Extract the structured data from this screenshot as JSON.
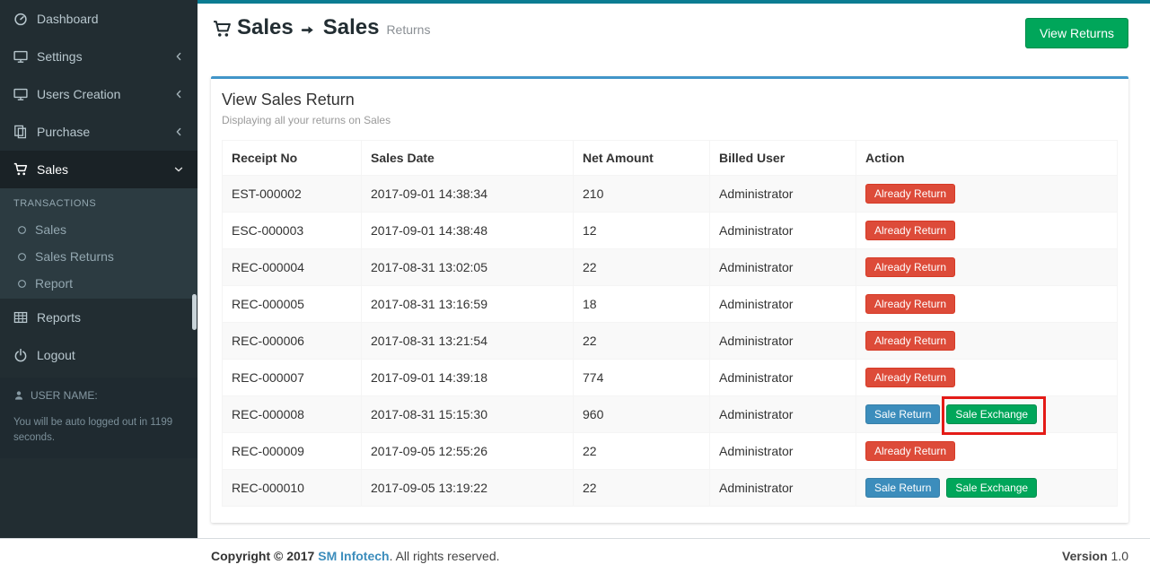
{
  "colors": {
    "accent_blue": "#3c8dbc",
    "success_green": "#00a65a",
    "danger_red": "#dd4b39",
    "sidebar_bg": "#222d32",
    "submenu_bg": "#2c3b41",
    "top_bar": "#0b7c92",
    "highlight_annotation": "#e41b17"
  },
  "sidebar": {
    "items": [
      {
        "label": "Dashboard",
        "icon": "dashboard-icon",
        "chevron": null,
        "active": false
      },
      {
        "label": "Settings",
        "icon": "desktop-icon",
        "chevron": "left",
        "active": false
      },
      {
        "label": "Users Creation",
        "icon": "desktop-icon",
        "chevron": "left",
        "active": false
      },
      {
        "label": "Purchase",
        "icon": "copy-icon",
        "chevron": "left",
        "active": false
      },
      {
        "label": "Sales",
        "icon": "cart-icon",
        "chevron": "down",
        "active": true
      }
    ],
    "submenu": {
      "header": "TRANSACTIONS",
      "items": [
        {
          "label": "Sales",
          "icon": "circle-icon"
        },
        {
          "label": "Sales Returns",
          "icon": "circle-icon"
        },
        {
          "label": "Report",
          "icon": "circle-icon"
        }
      ]
    },
    "lower_items": [
      {
        "label": "Reports",
        "icon": "table-icon",
        "chevron": null,
        "active": false
      },
      {
        "label": "Logout",
        "icon": "power-icon",
        "chevron": null,
        "active": false
      }
    ],
    "user_section": {
      "icon": "user-icon",
      "label": "USER NAME:",
      "auto_logout_text": "You will be auto logged out in 1199 seconds."
    }
  },
  "header": {
    "icon": "cart-icon",
    "title_main": "Sales",
    "arrow_icon": "arrow-right-icon",
    "title_section": "Sales",
    "title_sub": "Returns",
    "action_button": "View Returns"
  },
  "panel": {
    "title": "View Sales Return",
    "subtitle": "Displaying all your returns on Sales"
  },
  "table": {
    "headers": [
      "Receipt No",
      "Sales Date",
      "Net Amount",
      "Billed User",
      "Action"
    ],
    "rows": [
      {
        "receipt_no": "EST-000002",
        "sales_date": "2017-09-01 14:38:34",
        "net_amount": "210",
        "billed_user": "Administrator",
        "actions": [
          {
            "label": "Already Return",
            "style": "danger",
            "highlight": false
          }
        ]
      },
      {
        "receipt_no": "ESC-000003",
        "sales_date": "2017-09-01 14:38:48",
        "net_amount": "12",
        "billed_user": "Administrator",
        "actions": [
          {
            "label": "Already Return",
            "style": "danger",
            "highlight": false
          }
        ]
      },
      {
        "receipt_no": "REC-000004",
        "sales_date": "2017-08-31 13:02:05",
        "net_amount": "22",
        "billed_user": "Administrator",
        "actions": [
          {
            "label": "Already Return",
            "style": "danger",
            "highlight": false
          }
        ]
      },
      {
        "receipt_no": "REC-000005",
        "sales_date": "2017-08-31 13:16:59",
        "net_amount": "18",
        "billed_user": "Administrator",
        "actions": [
          {
            "label": "Already Return",
            "style": "danger",
            "highlight": false
          }
        ]
      },
      {
        "receipt_no": "REC-000006",
        "sales_date": "2017-08-31 13:21:54",
        "net_amount": "22",
        "billed_user": "Administrator",
        "actions": [
          {
            "label": "Already Return",
            "style": "danger",
            "highlight": false
          }
        ]
      },
      {
        "receipt_no": "REC-000007",
        "sales_date": "2017-09-01 14:39:18",
        "net_amount": "774",
        "billed_user": "Administrator",
        "actions": [
          {
            "label": "Already Return",
            "style": "danger",
            "highlight": false
          }
        ]
      },
      {
        "receipt_no": "REC-000008",
        "sales_date": "2017-08-31 15:15:30",
        "net_amount": "960",
        "billed_user": "Administrator",
        "actions": [
          {
            "label": "Sale Return",
            "style": "primary",
            "highlight": false
          },
          {
            "label": "Sale Exchange",
            "style": "success",
            "highlight": true
          }
        ]
      },
      {
        "receipt_no": "REC-000009",
        "sales_date": "2017-09-05 12:55:26",
        "net_amount": "22",
        "billed_user": "Administrator",
        "actions": [
          {
            "label": "Already Return",
            "style": "danger",
            "highlight": false
          }
        ]
      },
      {
        "receipt_no": "REC-000010",
        "sales_date": "2017-09-05 13:19:22",
        "net_amount": "22",
        "billed_user": "Administrator",
        "actions": [
          {
            "label": "Sale Return",
            "style": "primary",
            "highlight": false
          },
          {
            "label": "Sale Exchange",
            "style": "success",
            "highlight": false
          }
        ]
      }
    ]
  },
  "footer": {
    "copyright": "Copyright © 2017",
    "brand": "SM Infotech",
    "rights": ". All rights reserved.",
    "version_label": "Version",
    "version_value": "1.0"
  }
}
